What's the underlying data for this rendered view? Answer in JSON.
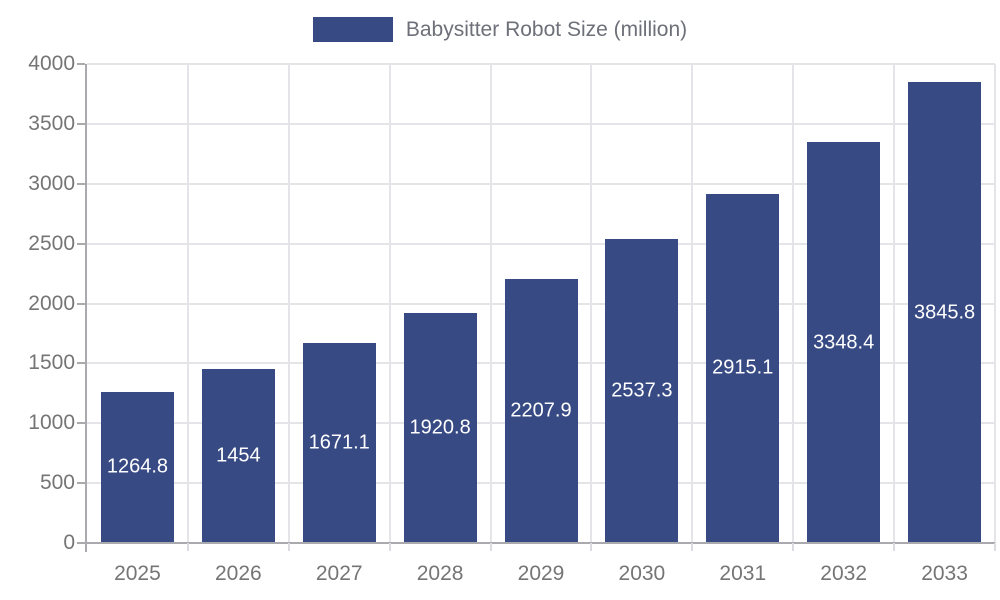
{
  "chart_data": {
    "type": "bar",
    "title": "Babysitter Robot Size (million)",
    "series_name": "Babysitter Robot Size (million)",
    "categories": [
      "2025",
      "2026",
      "2027",
      "2028",
      "2029",
      "2030",
      "2031",
      "2032",
      "2033"
    ],
    "values": [
      1264.8,
      1454,
      1671.1,
      1920.8,
      2207.9,
      2537.3,
      2915.1,
      3348.4,
      3845.8
    ],
    "value_labels": [
      "1264.8",
      "1454",
      "1671.1",
      "1920.8",
      "2207.9",
      "2537.3",
      "2915.1",
      "3348.4",
      "3845.8"
    ],
    "xlabel": "",
    "ylabel": "",
    "ylim": [
      0,
      4000
    ],
    "ytick_step": 500,
    "ytick_labels": [
      "0",
      "500",
      "1000",
      "1500",
      "2000",
      "2500",
      "3000",
      "3500",
      "4000"
    ],
    "grid": true,
    "legend_position": "top-center",
    "value_label_position": "inside-center",
    "colors": {
      "bar": "#374A84",
      "value_label": "#FFFFFF",
      "axis_line": "#A9A9AE",
      "grid_line": "#E4E4E9",
      "x_tick": "#DCDCE0",
      "tick_label": "#757575",
      "legend_text": "#6E7079",
      "background": "#FFFFFF"
    }
  }
}
